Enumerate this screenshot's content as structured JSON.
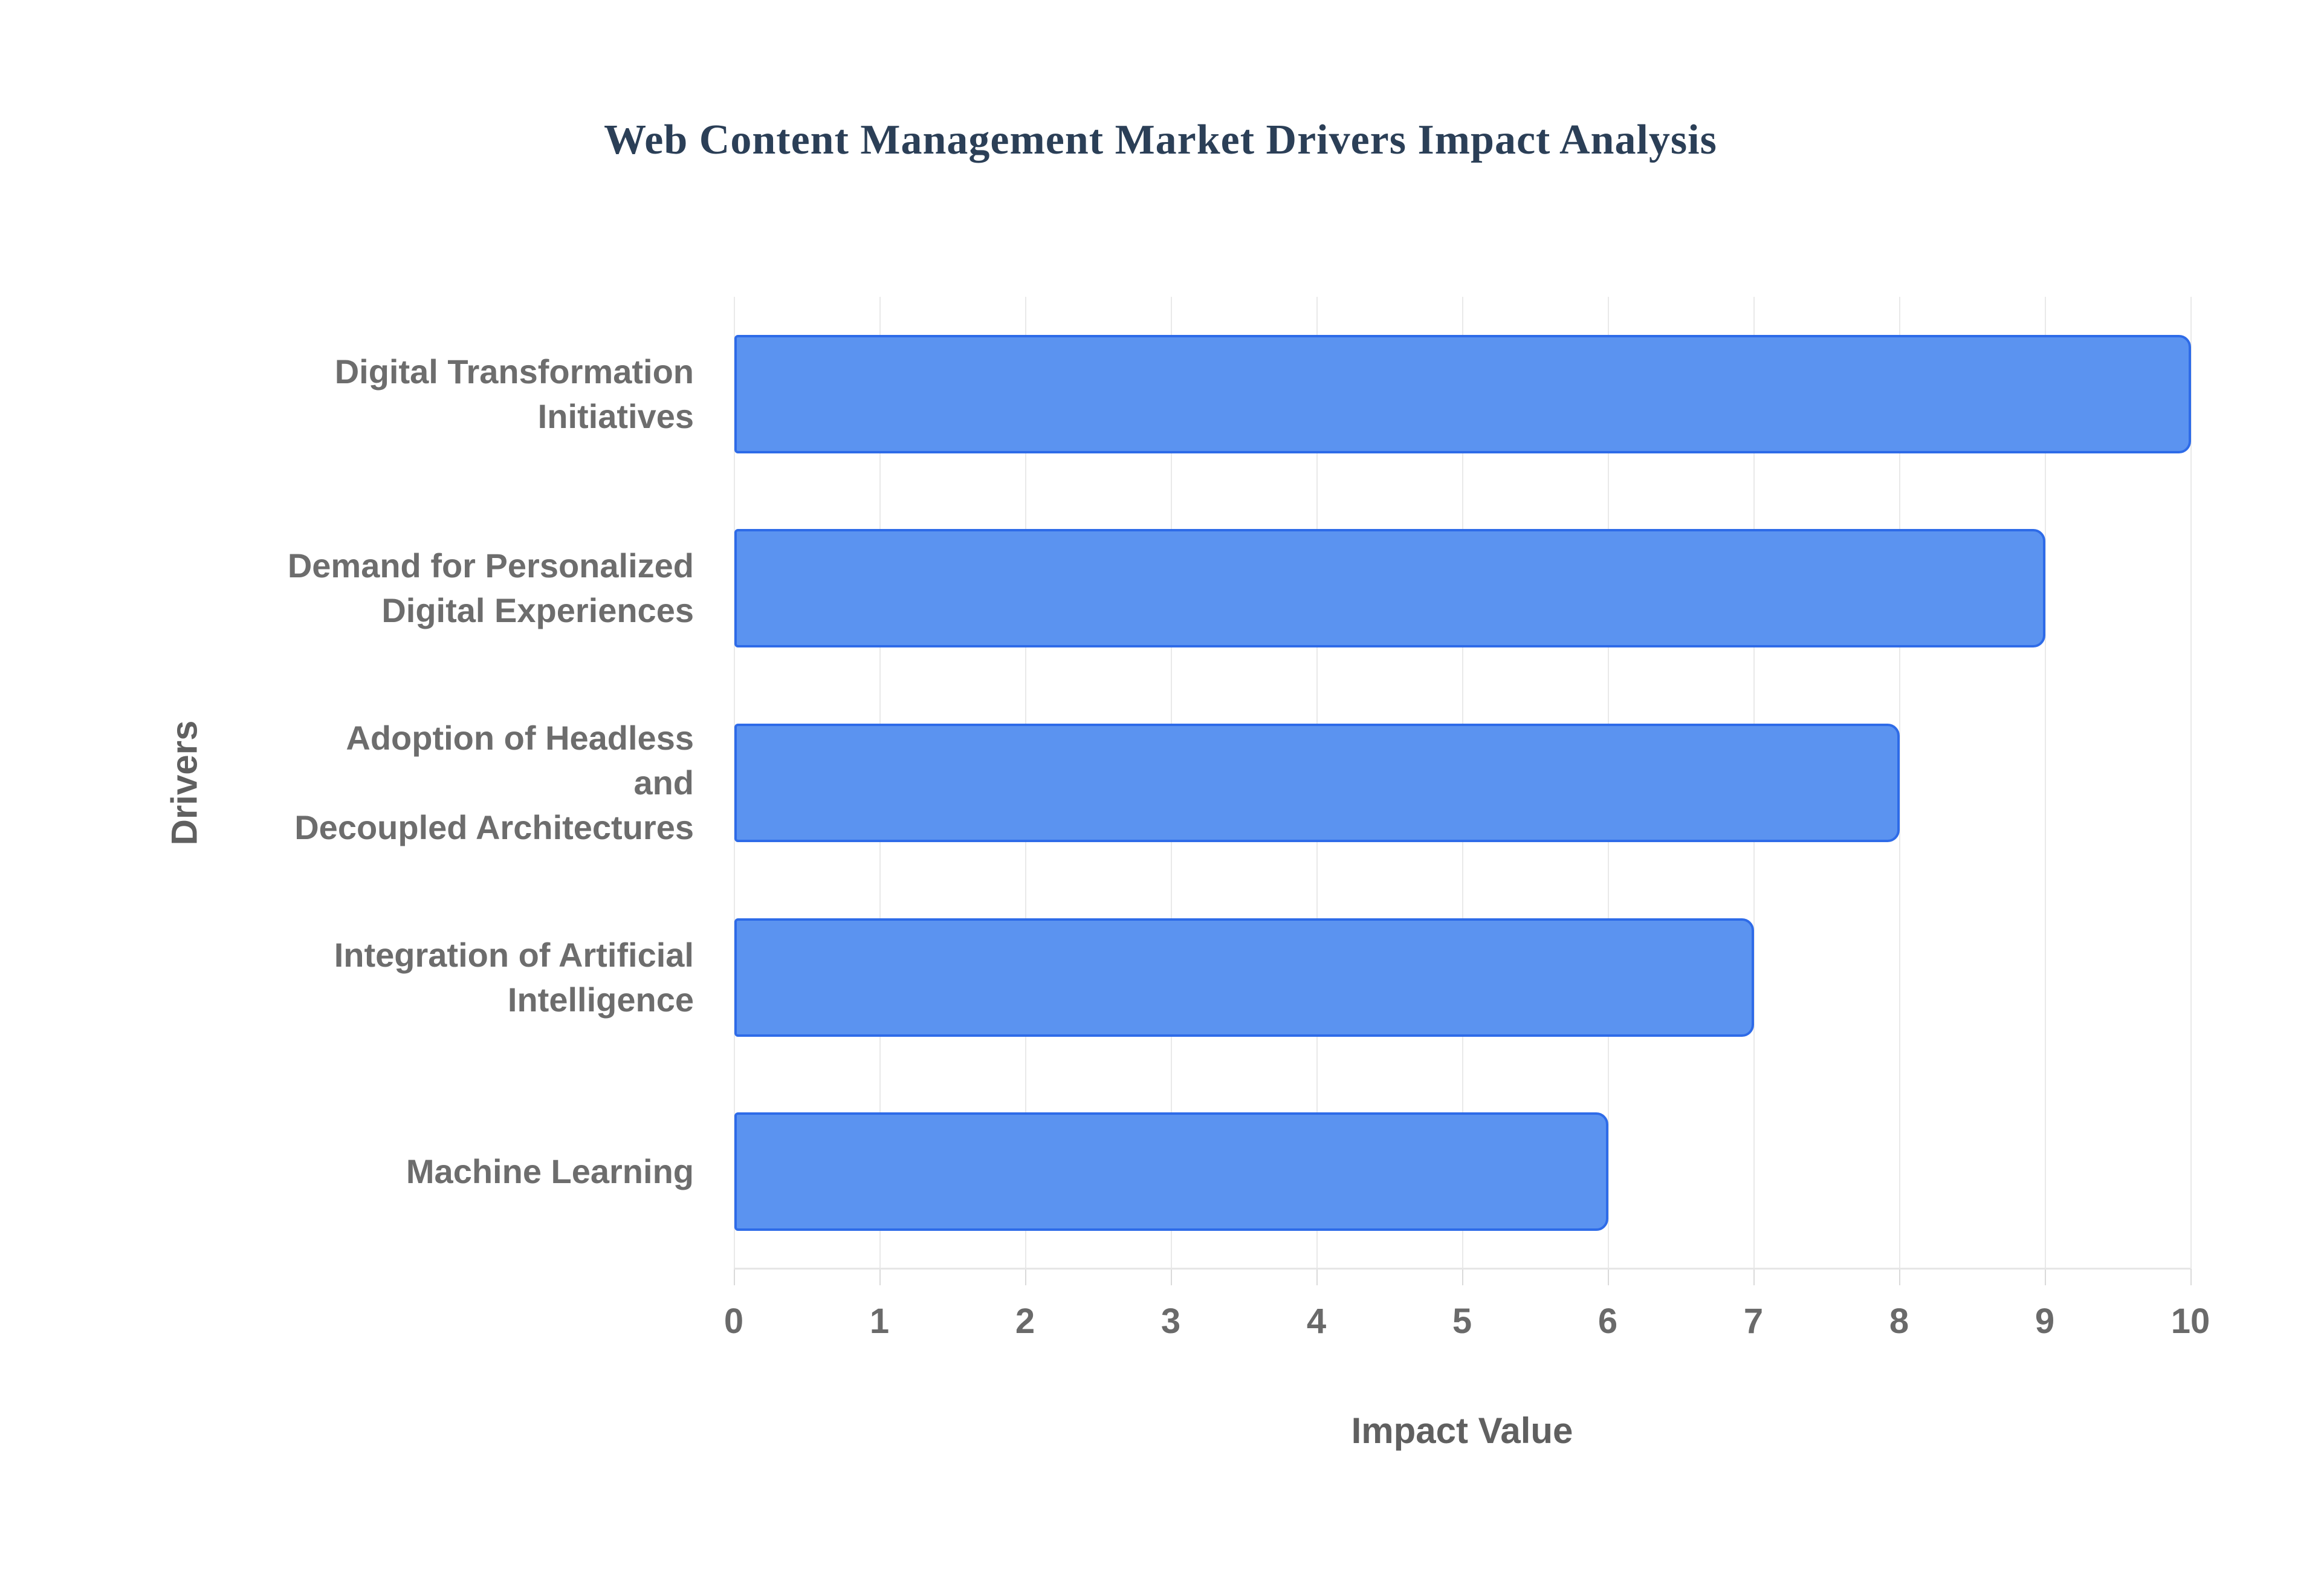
{
  "title": "Web Content Management Market Drivers Impact Analysis",
  "chart_data": {
    "type": "bar",
    "orientation": "horizontal",
    "title": "Web Content Management Market Drivers Impact Analysis",
    "categories": [
      "Digital Transformation Initiatives",
      "Demand for Personalized Digital Experiences",
      "Adoption of Headless and Decoupled Architectures",
      "Integration of Artificial Intelligence",
      "Machine Learning"
    ],
    "category_lines": [
      [
        "Digital Transformation",
        "Initiatives"
      ],
      [
        "Demand for Personalized",
        "Digital Experiences"
      ],
      [
        "Adoption of Headless and",
        "Decoupled Architectures"
      ],
      [
        "Integration of Artificial",
        "Intelligence"
      ],
      [
        "Machine Learning"
      ]
    ],
    "values": [
      10,
      9,
      8,
      7,
      6
    ],
    "xlabel": "Impact Value",
    "ylabel": "Drivers",
    "xlim": [
      0,
      10
    ],
    "xticks": [
      0,
      1,
      2,
      3,
      4,
      5,
      6,
      7,
      8,
      9,
      10
    ],
    "grid": true,
    "legend_position": "none",
    "colors": {
      "bar_fill": "#5b93f0",
      "bar_border": "#2e6be8",
      "gridline": "#e9e9e9",
      "tick_mark": "#dadada",
      "title_text": "#2b3f57",
      "category_text": "#6d6d6d",
      "tick_text": "#6a6a6a",
      "axis_title_text": "#606060",
      "background": "#ffffff"
    }
  }
}
